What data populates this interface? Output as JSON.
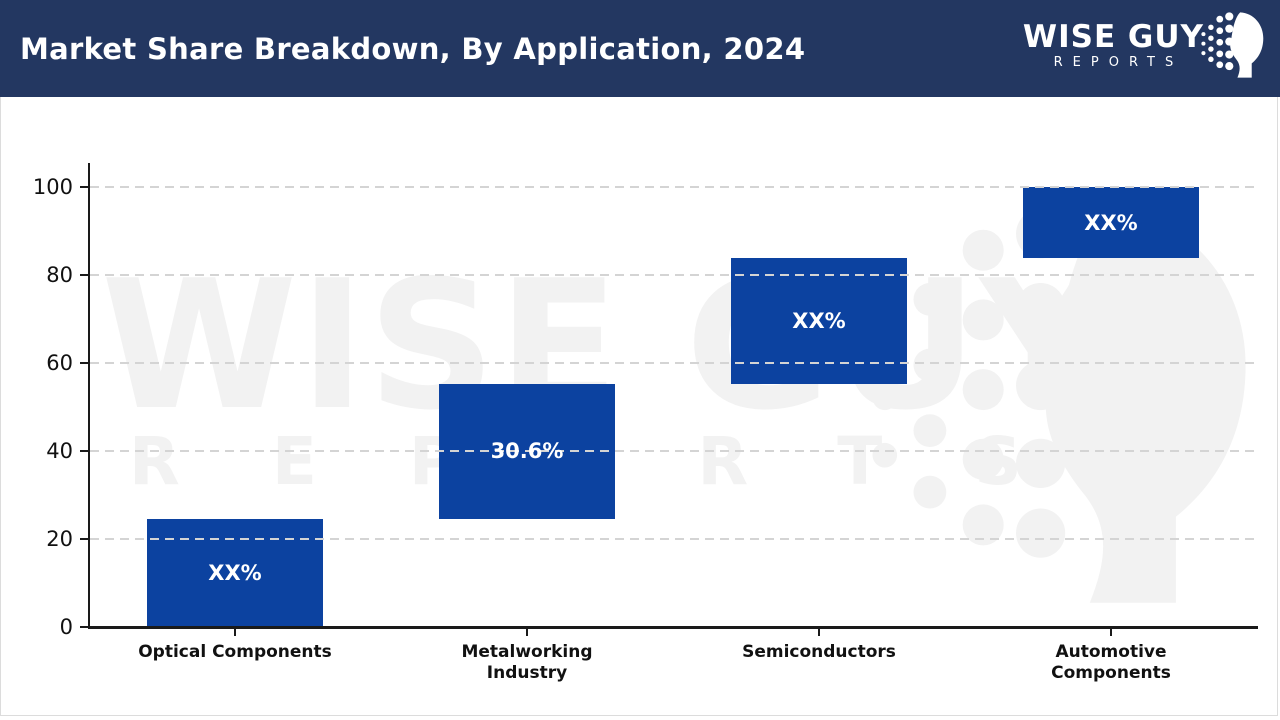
{
  "header": {
    "title": "Market Share Breakdown, By Application, 2024",
    "logo": {
      "wordmark": "WISE GUY",
      "subtext": "REPORTS"
    }
  },
  "watermark": {
    "wordmark": "WISE GUY",
    "subtext": "REPORTS"
  },
  "colors": {
    "header_bg": "#233761",
    "bar_fill": "#0c42a0",
    "bar_label_text": "#ffffff",
    "grid_line": "#d4d4d4",
    "axis_line": "#1a1a1a",
    "tick_label_text": "#111111",
    "watermark": "#f2f2f2"
  },
  "chart_data": {
    "type": "bar",
    "variant": "stacked-waterfall-floating-bars",
    "title": "Market Share Breakdown, By Application, 2024",
    "xlabel": "",
    "ylabel": "",
    "ylim": [
      0,
      100
    ],
    "yticks": [
      0,
      20,
      40,
      60,
      80,
      100
    ],
    "grid": "horizontal-dashed",
    "legend": "none",
    "categories": [
      "Optical Components",
      "Metalworking\nIndustry",
      "Semiconductors",
      "Automotive\nComponents"
    ],
    "bars": [
      {
        "category": "Optical Components",
        "start": 0,
        "end": 24.6,
        "segment_value": 24.6,
        "value_label": "XX%"
      },
      {
        "category": "Metalworking Industry",
        "start": 24.6,
        "end": 55.2,
        "segment_value": 30.6,
        "value_label": "30.6%"
      },
      {
        "category": "Semiconductors",
        "start": 55.2,
        "end": 83.8,
        "segment_value": 28.6,
        "value_label": "XX%"
      },
      {
        "category": "Automotive Components",
        "start": 83.8,
        "end": 100.0,
        "segment_value": 16.2,
        "value_label": "XX%"
      }
    ]
  }
}
